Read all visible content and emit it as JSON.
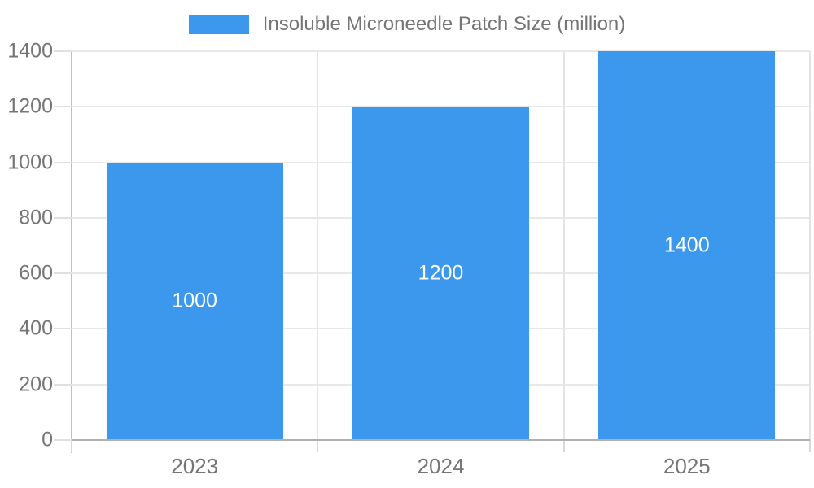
{
  "legend": {
    "label": "Insoluble Microneedle Patch Size (million)"
  },
  "chart_data": {
    "type": "bar",
    "title": "",
    "xlabel": "",
    "ylabel": "",
    "categories": [
      "2023",
      "2024",
      "2025"
    ],
    "values": [
      1000,
      1200,
      1400
    ],
    "series_name": "Insoluble Microneedle Patch Size (million)",
    "ylim": [
      0,
      1400
    ],
    "yticks": [
      0,
      200,
      400,
      600,
      800,
      1000,
      1200,
      1400
    ],
    "grid": true,
    "legend_position": "top-center",
    "bar_color": "#3b98ec",
    "data_label_color": "#ffffff",
    "axis_text_color": "#757575",
    "gridline_color": "#e8e8e8",
    "baseline_color": "#b0b0b0"
  }
}
